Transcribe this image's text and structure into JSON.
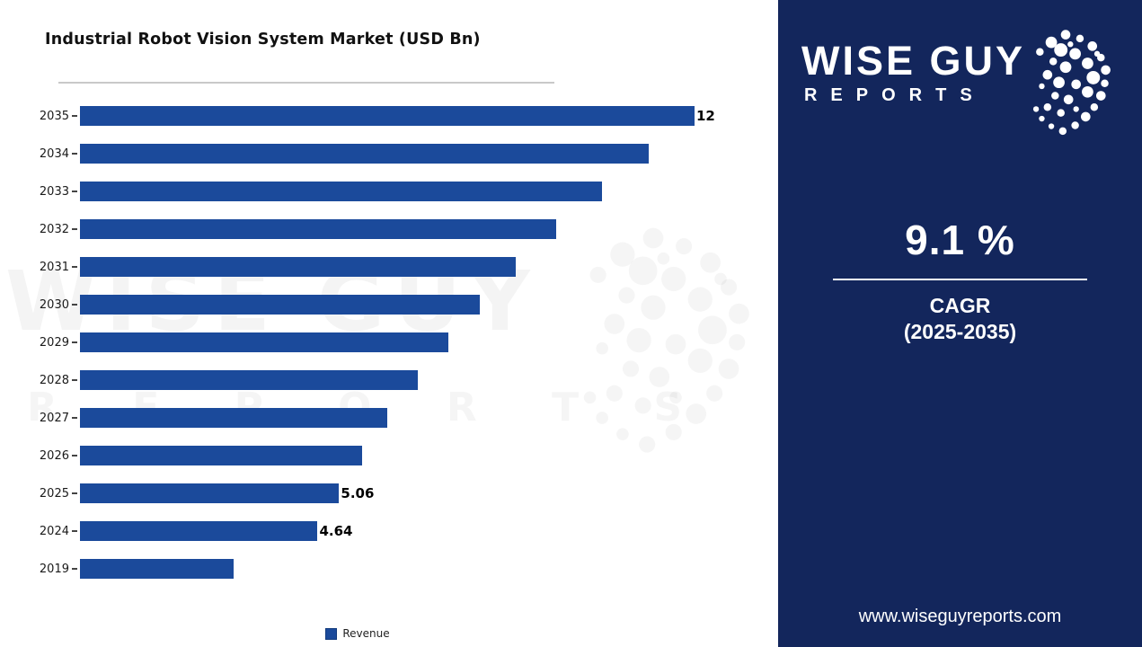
{
  "chart_data": {
    "type": "bar",
    "orientation": "horizontal",
    "title": "Industrial Robot Vision System Market (USD Bn)",
    "categories": [
      "2035",
      "2034",
      "2033",
      "2032",
      "2031",
      "2030",
      "2029",
      "2028",
      "2027",
      "2026",
      "2025",
      "2024",
      "2019"
    ],
    "values": [
      12,
      11.1,
      10.2,
      9.3,
      8.5,
      7.8,
      7.2,
      6.6,
      6.0,
      5.5,
      5.06,
      4.64,
      3.0
    ],
    "value_labels": [
      "12",
      "",
      "",
      "",
      "",
      "",
      "",
      "",
      "",
      "",
      "5.06",
      "4.64",
      ""
    ],
    "xlabel": "",
    "ylabel": "",
    "xlim": [
      0,
      13.4
    ],
    "grid": false,
    "bar_color": "#1b4a9b",
    "legend": {
      "label": "Revenue",
      "position": "bottom-center",
      "color": "#1b4a9b"
    }
  },
  "sidebar": {
    "logo_line1": "WISE GUY",
    "logo_line2": "REPORTS",
    "cagr_value": "9.1 %",
    "cagr_line1": "CAGR",
    "cagr_line2": "(2025-2035)",
    "website": "www.wiseguyreports.com",
    "colors": {
      "background": "#13265c",
      "text": "#ffffff"
    }
  },
  "watermark": {
    "line1": "WISE GUY",
    "line2": "R E P O R T S"
  }
}
